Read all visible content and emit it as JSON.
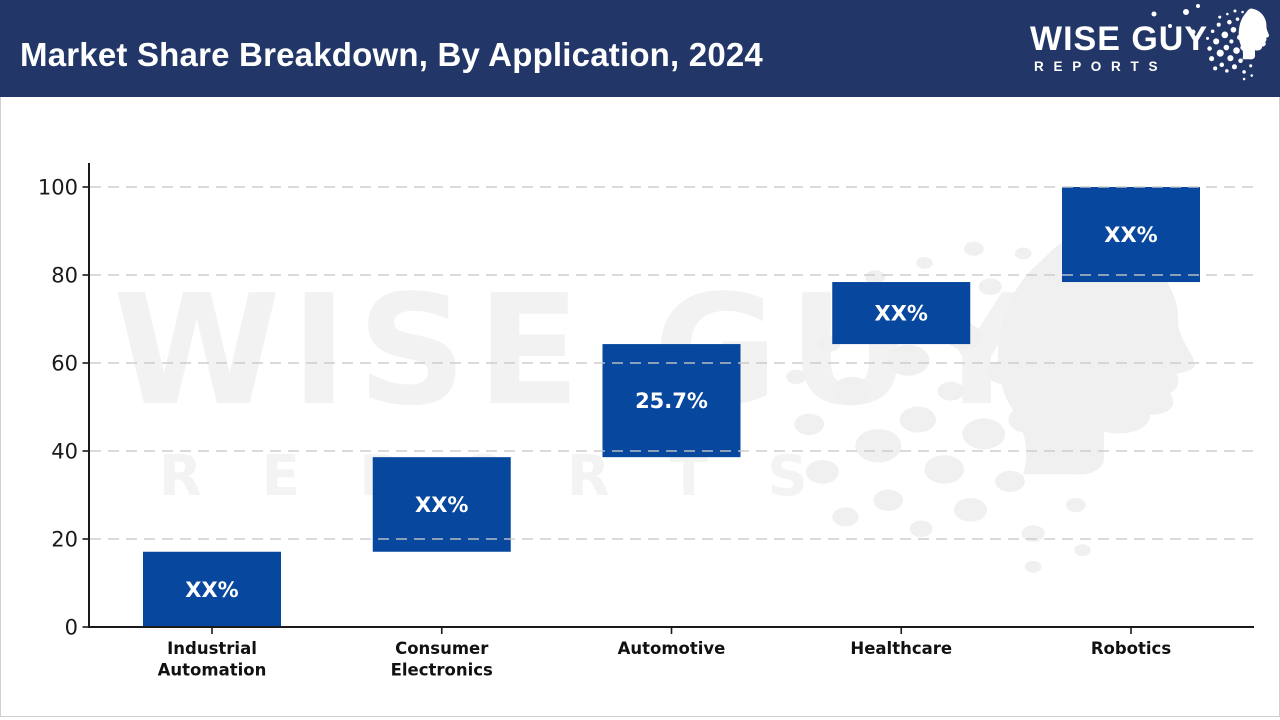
{
  "header": {
    "title": "Market Share Breakdown, By Application, 2024",
    "logo": {
      "brand": "WISE GUY",
      "brand_sub": "R E P O R T S"
    }
  },
  "watermark": {
    "brand": "WISE GUY",
    "brand_sub": "R E P O R T S"
  },
  "colors": {
    "header_bg": "#223768",
    "bar": "#07479e",
    "grid": "#c9c9c9",
    "axis": "#1a1a1a",
    "bar_label_text": "#ffffff",
    "tick_label_text": "#1a1a1a",
    "category_label_text": "#111111",
    "watermark": "#f0f0f0",
    "border": "#cfcfcf"
  },
  "chart_data": {
    "type": "bar",
    "variant": "waterfall",
    "title": "Market Share Breakdown, By Application, 2024",
    "categories": [
      [
        "Industrial",
        "Automation"
      ],
      [
        "Consumer",
        "Electronics"
      ],
      [
        "Automotive"
      ],
      [
        "Healthcare"
      ],
      [
        "Robotics"
      ]
    ],
    "values": [
      17.1,
      21.5,
      25.7,
      14.1,
      21.6
    ],
    "cumulative_start": [
      0,
      17.1,
      38.6,
      64.3,
      78.4
    ],
    "cumulative_end": [
      17.1,
      38.6,
      64.3,
      78.4,
      100
    ],
    "bar_labels": [
      "XX%",
      "XX%",
      "25.7%",
      "XX%",
      "XX%"
    ],
    "xlabel": "",
    "ylabel": "",
    "yticks": [
      0,
      20,
      40,
      60,
      80,
      100
    ],
    "ylim": [
      0,
      105
    ],
    "grid": "horizontal dashed",
    "legend": "none"
  }
}
